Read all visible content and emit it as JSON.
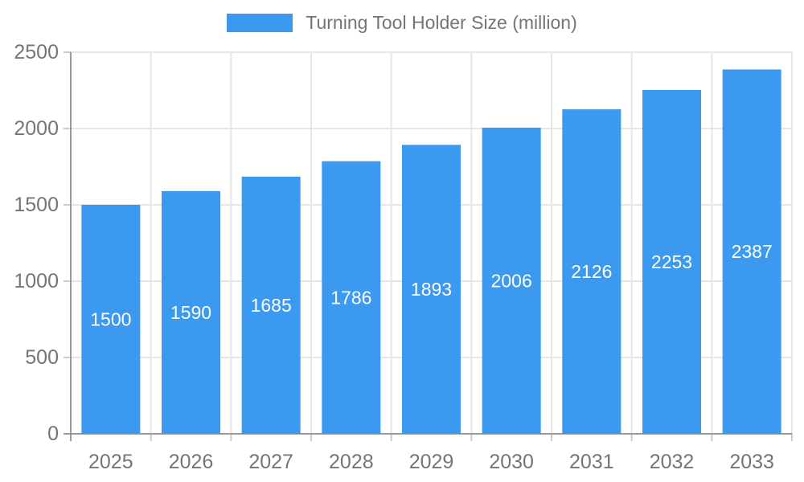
{
  "legend": {
    "label": "Turning Tool Holder Size (million)"
  },
  "chart_data": {
    "type": "bar",
    "title": "Turning Tool Holder Size (million)",
    "categories": [
      "2025",
      "2026",
      "2027",
      "2028",
      "2029",
      "2030",
      "2031",
      "2032",
      "2033"
    ],
    "values": [
      1500,
      1590,
      1685,
      1786,
      1893,
      2006,
      2126,
      2253,
      2387
    ],
    "xlabel": "",
    "ylabel": "",
    "ylim": [
      0,
      2500
    ],
    "yticks": [
      0,
      500,
      1000,
      1500,
      2000,
      2500
    ],
    "grid": true,
    "legend_position": "top",
    "bar_color": "#3b99ef",
    "bar_label_color": "#ffffff",
    "axis_color": "#999999",
    "tick_color": "#cccccc",
    "grid_color": "#e6e6e6",
    "tick_label_color": "#757575"
  }
}
